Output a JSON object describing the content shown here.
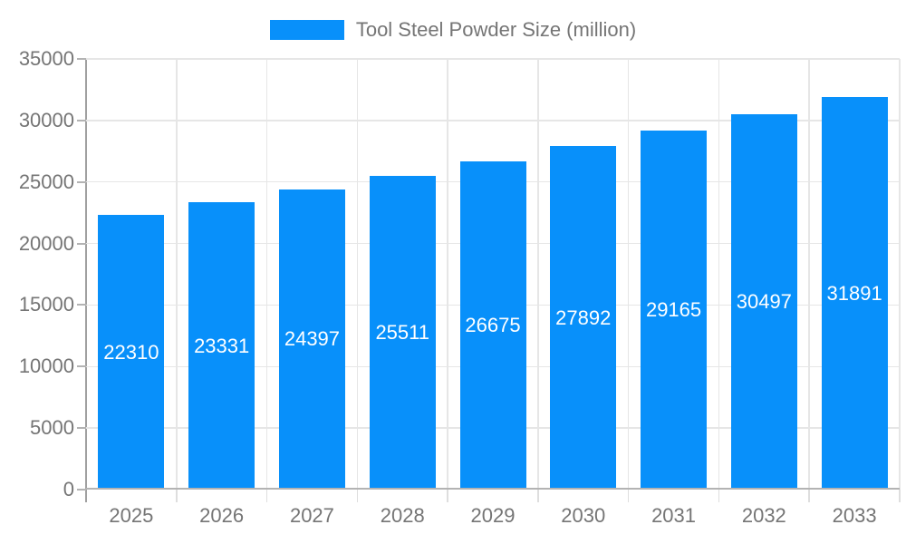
{
  "legend": {
    "series_label": "Tool Steel Powder Size (million)"
  },
  "chart_data": {
    "type": "bar",
    "title": "Tool Steel Powder Size (million)",
    "categories": [
      "2025",
      "2026",
      "2027",
      "2028",
      "2029",
      "2030",
      "2031",
      "2032",
      "2033"
    ],
    "series": [
      {
        "name": "Tool Steel Powder Size (million)",
        "values": [
          22310,
          23331,
          24397,
          25511,
          26675,
          27892,
          29165,
          30497,
          31891
        ]
      }
    ],
    "value_labels": [
      "22310",
      "23331",
      "24397",
      "25511",
      "26675",
      "27892",
      "29165",
      "30497",
      "31891"
    ],
    "xlabel": "",
    "ylabel": "",
    "ylim": [
      0,
      35000
    ],
    "ytick_step": 5000,
    "ytick_labels": [
      "0",
      "5000",
      "10000",
      "15000",
      "20000",
      "25000",
      "30000",
      "35000"
    ],
    "grid": true,
    "legend_position": "top",
    "colors": {
      "bar": "#0890fa",
      "bar_value_label": "#ffffff",
      "axis_text": "#757575",
      "gridline": "#e6e6e6",
      "y_axis_line": "#a0a0a0",
      "baseline": "#b3b3b3",
      "background": "#ffffff"
    }
  }
}
